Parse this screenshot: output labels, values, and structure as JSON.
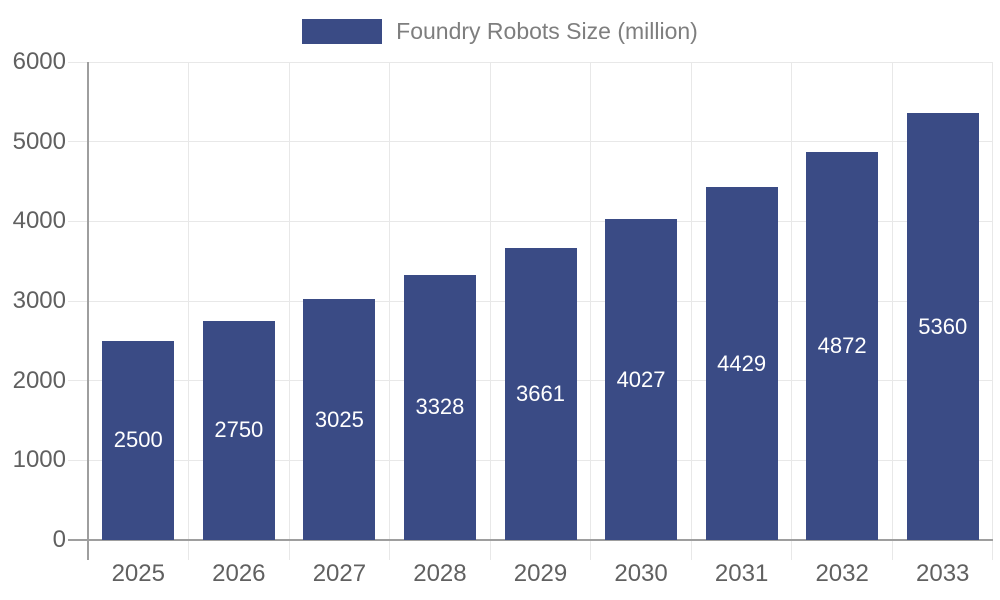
{
  "legend": {
    "label": "Foundry Robots Size (million)"
  },
  "chart_data": {
    "type": "bar",
    "title": "Foundry Robots Size (million)",
    "categories": [
      "2025",
      "2026",
      "2027",
      "2028",
      "2029",
      "2030",
      "2031",
      "2032",
      "2033"
    ],
    "series": [
      {
        "name": "Foundry Robots Size (million)",
        "values": [
          2500,
          2750,
          3025,
          3328,
          3661,
          4027,
          4429,
          4872,
          5360
        ]
      }
    ],
    "value_labels": [
      "2500",
      "2750",
      "3025",
      "3328",
      "3661",
      "4027",
      "4429",
      "4872",
      "5360"
    ],
    "xlabel": "",
    "ylabel": "",
    "ylim": [
      0,
      6000
    ],
    "yticks": [
      0,
      1000,
      2000,
      3000,
      4000,
      5000,
      6000
    ],
    "grid": true,
    "legend_position": "top-center",
    "value_label_position": "inside-center"
  },
  "colors": {
    "bar": "#3A4B85",
    "value_label": "#FFFFFF",
    "grid_line": "#E8E8E8",
    "axis_line": "#9E9E9E",
    "tick_label": "#606060",
    "legend_text": "#7E7E7E",
    "background": "#FFFFFF"
  }
}
